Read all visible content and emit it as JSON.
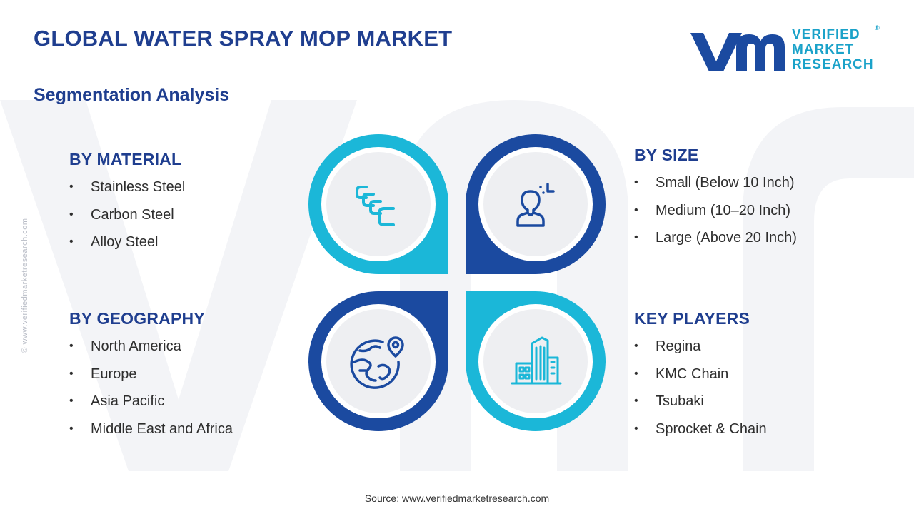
{
  "header": {
    "title": "GLOBAL WATER SPRAY MOP MARKET",
    "subtitle": "Segmentation Analysis"
  },
  "logo": {
    "line1": "VERIFIED",
    "line2": "MARKET",
    "line3": "RESEARCH",
    "registered": "®"
  },
  "side_credit": "© www.verifiedmarketresearch.com",
  "colors": {
    "navy": "#1f3e8f",
    "dark_blue": "#1b4aa0",
    "cyan": "#1bb7d8",
    "circle_fill": "#eeeff2"
  },
  "segments": {
    "material": {
      "heading": "BY MATERIAL",
      "items": [
        "Stainless Steel",
        "Carbon Steel",
        "Alloy Steel"
      ],
      "icon": "chain-links-icon"
    },
    "size": {
      "heading": "BY SIZE",
      "items": [
        "Small (Below 10 Inch)",
        "Medium (10–20 Inch)",
        "Large (Above 20 Inch)"
      ],
      "icon": "person-size-icon"
    },
    "geography": {
      "heading": "BY GEOGRAPHY",
      "items": [
        "North America",
        "Europe",
        "Asia Pacific",
        "Middle East and Africa"
      ],
      "icon": "globe-location-icon"
    },
    "players": {
      "heading": "KEY PLAYERS",
      "items": [
        "Regina",
        "KMC Chain",
        "Tsubaki",
        "Sprocket & Chain"
      ],
      "icon": "buildings-icon"
    }
  },
  "footer": {
    "source": "Source: www.verifiedmarketresearch.com"
  }
}
